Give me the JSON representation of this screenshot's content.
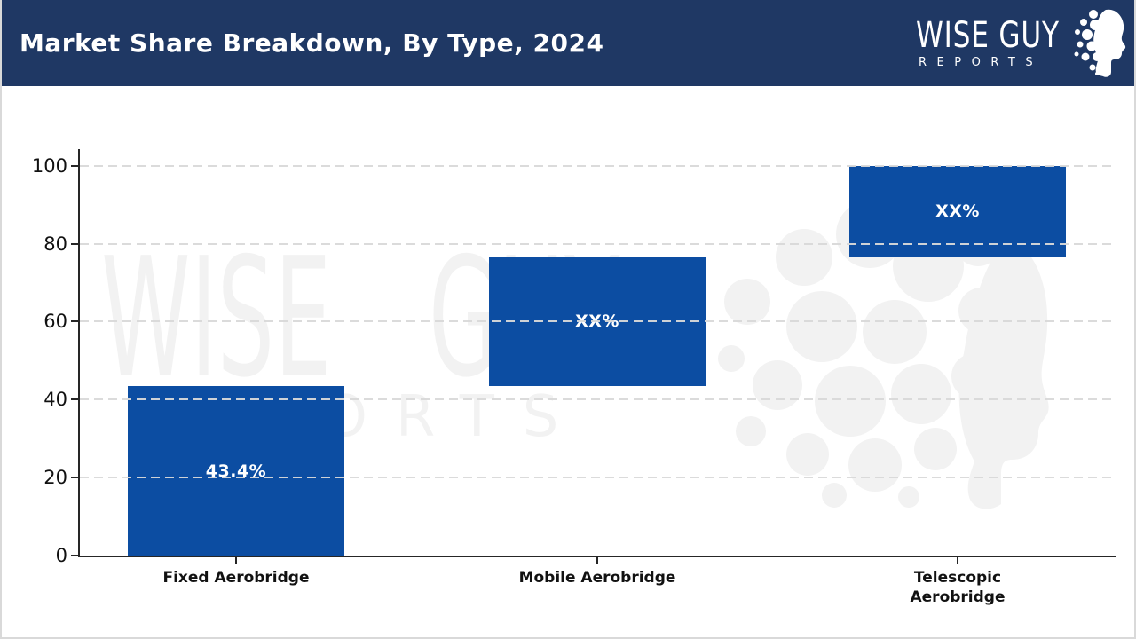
{
  "header": {
    "title": "Market Share Breakdown, By Type, 2024",
    "logo": {
      "line1": "WISE GUY",
      "line2": "REPORTS"
    }
  },
  "watermark": {
    "line1": "WISE GUY",
    "line2": "REPORTS"
  },
  "colors": {
    "header_bg": "#1f3864",
    "bar_fill": "#0c4da2",
    "grid": "#d9d9d9",
    "axis": "#262626",
    "label_text": "#111111",
    "bar_label_text": "#ffffff",
    "watermark": "#f2f2f2"
  },
  "chart_data": {
    "type": "bar",
    "subtype": "waterfall-style floating bars (cumulative market share)",
    "title": "Market Share Breakdown, By Type, 2024",
    "categories": [
      "Fixed Aerobridge",
      "Mobile Aerobridge",
      "Telescopic\nAerobridge"
    ],
    "segments": [
      {
        "category": "Fixed Aerobridge",
        "start": 0,
        "end": 43.4,
        "value": 43.4,
        "label": "43.4%",
        "label_masked": false
      },
      {
        "category": "Mobile Aerobridge",
        "start": 43.4,
        "end": 76.6,
        "value": 33.2,
        "label": "XX%",
        "label_masked": true
      },
      {
        "category": "Telescopic Aerobridge",
        "start": 76.6,
        "end": 100,
        "value": 23.4,
        "label": "XX%",
        "label_masked": true
      }
    ],
    "ylim": [
      0,
      100
    ],
    "yticks": [
      0,
      20,
      40,
      60,
      80,
      100
    ],
    "xlabel": "",
    "ylabel": "",
    "grid": "horizontal dashed gridlines drawn over bars",
    "legend": "none",
    "bar_color": "#0c4da2"
  }
}
